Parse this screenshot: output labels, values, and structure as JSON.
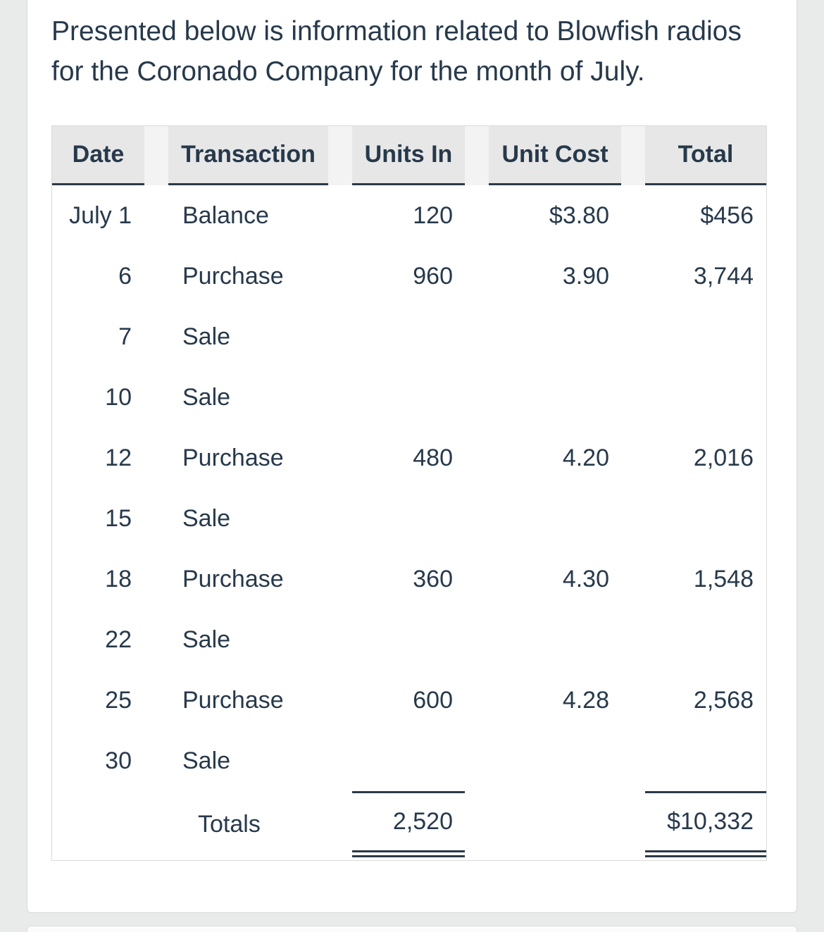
{
  "colors": {
    "text": "#27394b",
    "rule": "#2b3947",
    "header_bg": "#e7e7e7",
    "page_bg": "#e9eaea"
  },
  "intro": "Presented below is information related to Blowfish radios for the Coronado Company for the month of July.",
  "table": {
    "headers": [
      "Date",
      "Transaction",
      "Units In",
      "Unit Cost",
      "Total"
    ],
    "rows": [
      {
        "date": "July 1",
        "transaction": "Balance",
        "units_in": "120",
        "unit_cost": "$3.80",
        "total": "$456"
      },
      {
        "date": "6",
        "transaction": "Purchase",
        "units_in": "960",
        "unit_cost": "3.90",
        "total": "3,744"
      },
      {
        "date": "7",
        "transaction": "Sale",
        "units_in": "",
        "unit_cost": "",
        "total": ""
      },
      {
        "date": "10",
        "transaction": "Sale",
        "units_in": "",
        "unit_cost": "",
        "total": ""
      },
      {
        "date": "12",
        "transaction": "Purchase",
        "units_in": "480",
        "unit_cost": "4.20",
        "total": "2,016"
      },
      {
        "date": "15",
        "transaction": "Sale",
        "units_in": "",
        "unit_cost": "",
        "total": ""
      },
      {
        "date": "18",
        "transaction": "Purchase",
        "units_in": "360",
        "unit_cost": "4.30",
        "total": "1,548"
      },
      {
        "date": "22",
        "transaction": "Sale",
        "units_in": "",
        "unit_cost": "",
        "total": ""
      },
      {
        "date": "25",
        "transaction": "Purchase",
        "units_in": "600",
        "unit_cost": "4.28",
        "total": "2,568"
      },
      {
        "date": "30",
        "transaction": "Sale",
        "units_in": "",
        "unit_cost": "",
        "total": ""
      }
    ],
    "totals": {
      "label": "Totals",
      "units_in": "2,520",
      "total": "$10,332"
    }
  }
}
